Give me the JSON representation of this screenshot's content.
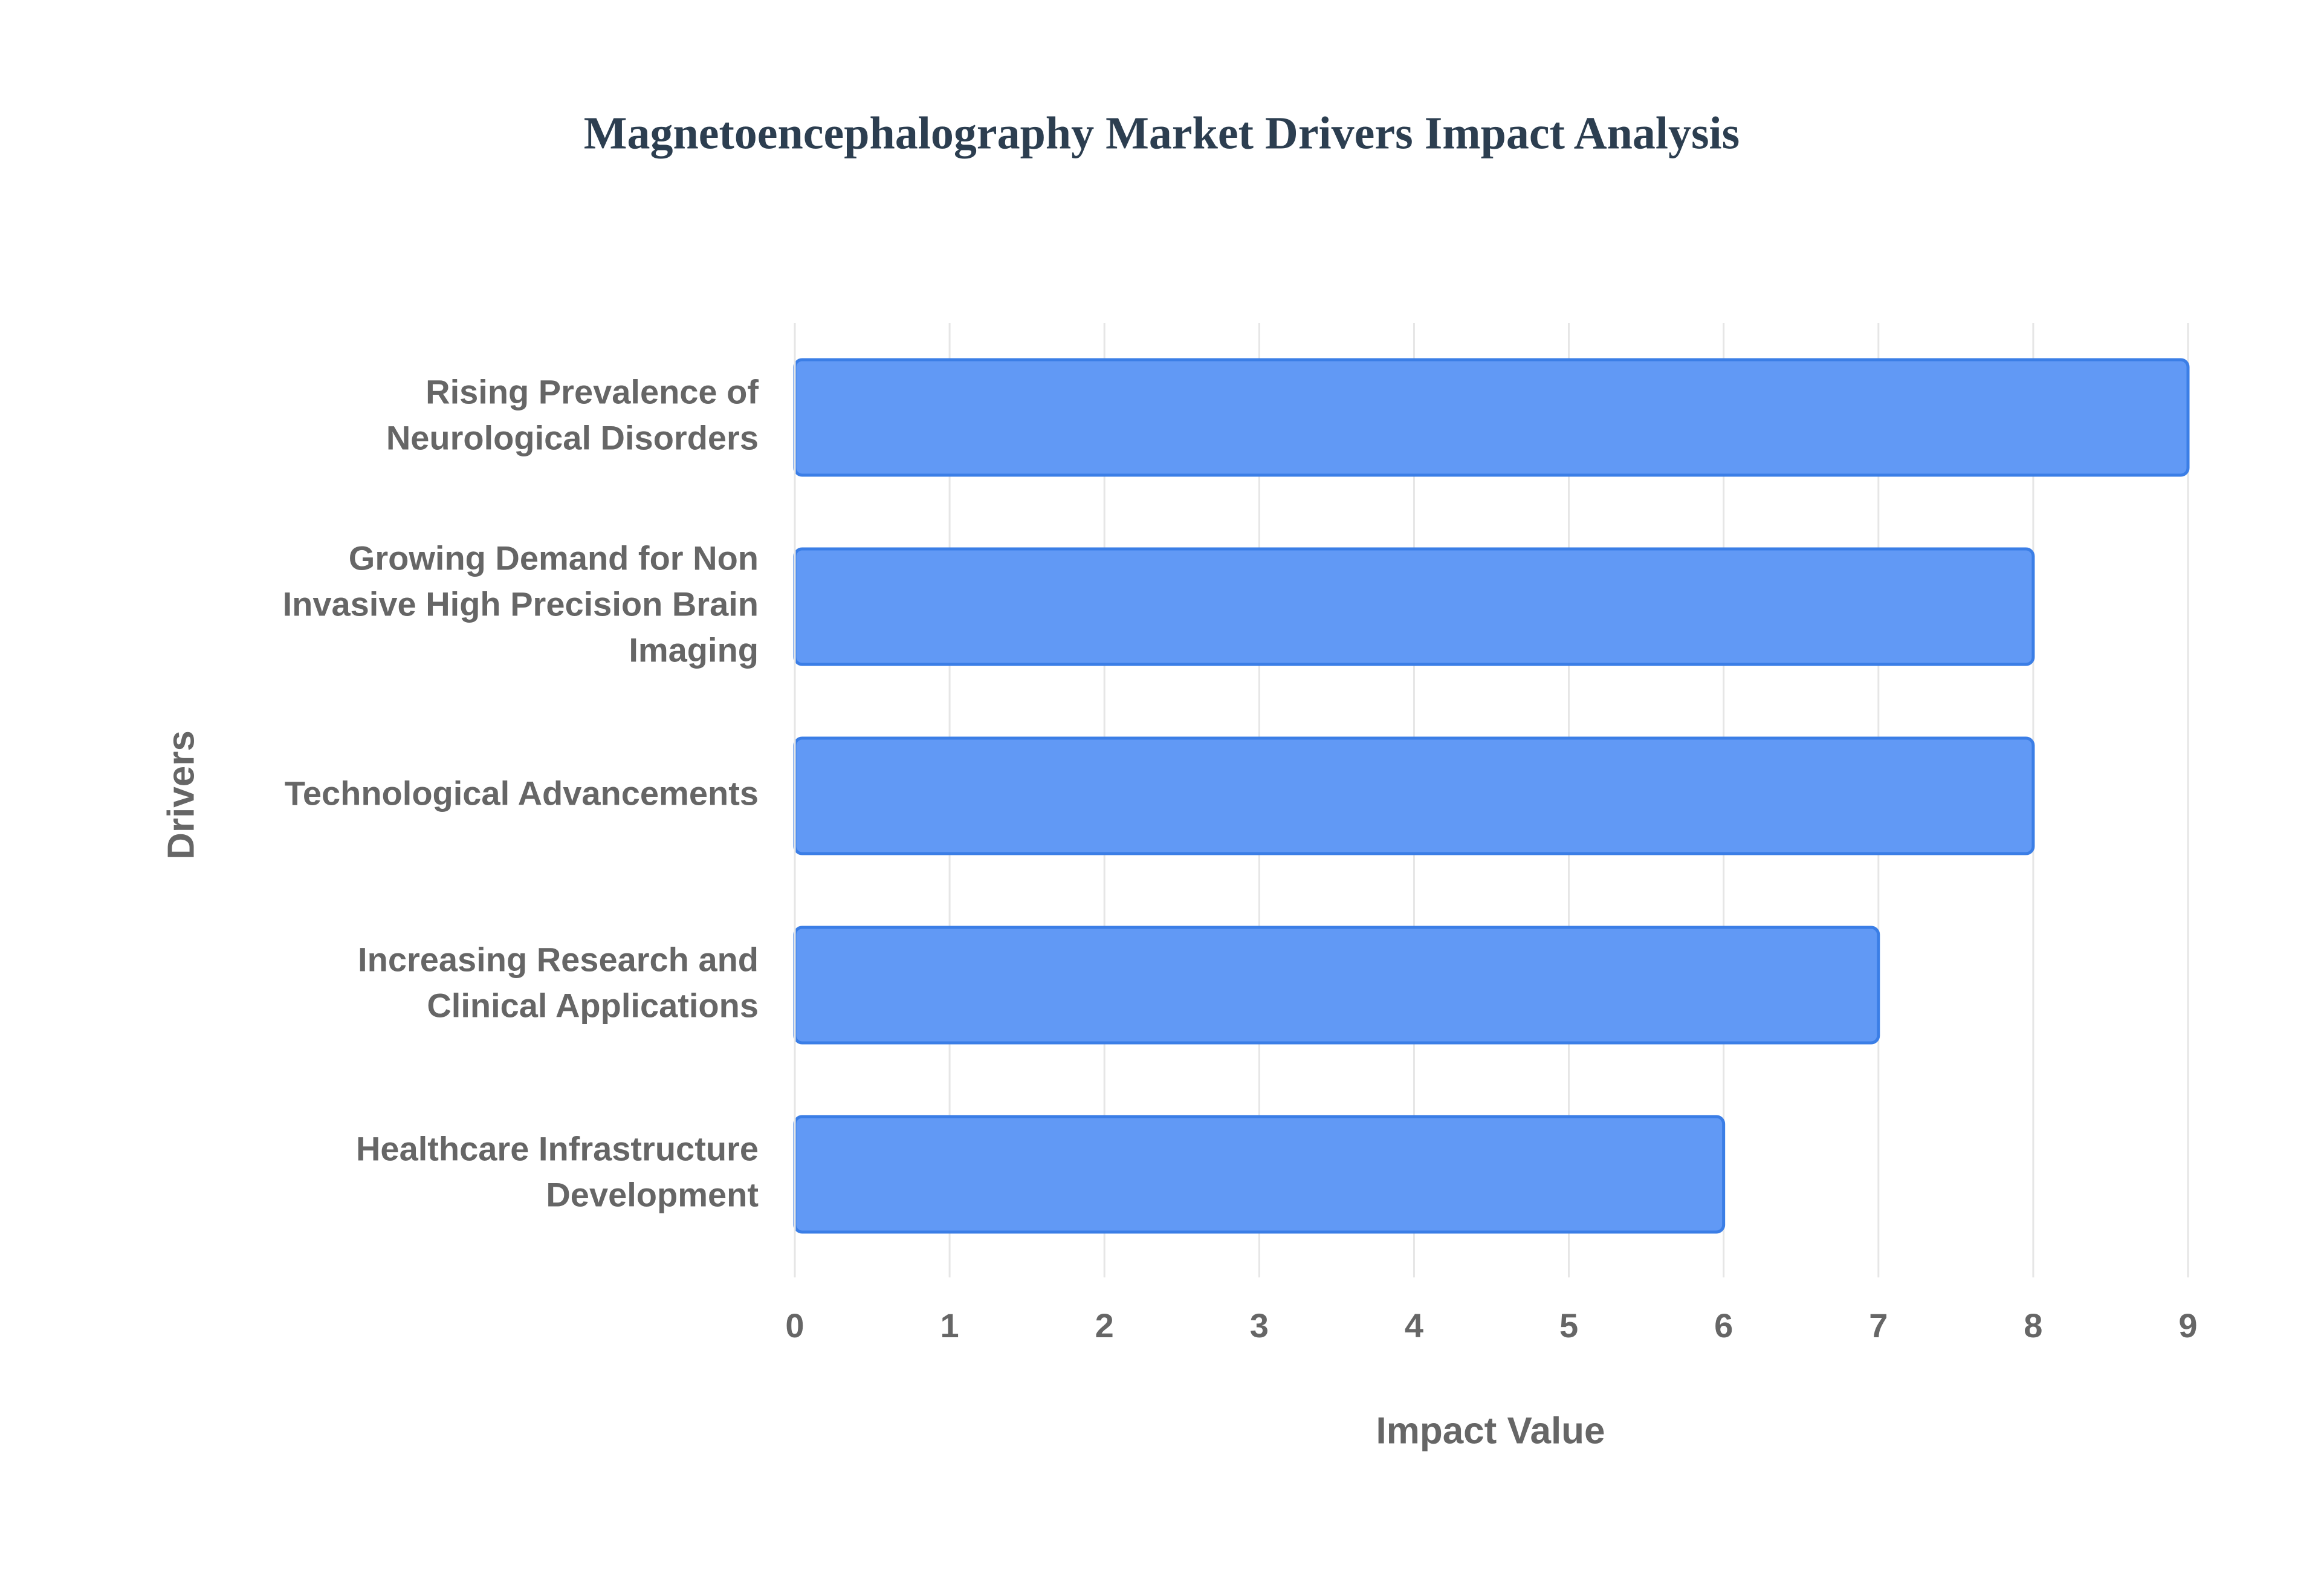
{
  "chart_data": {
    "type": "hbar",
    "title": "Magnetoencephalography Market Drivers Impact Analysis",
    "x_label": "Impact Value",
    "y_label": "Drivers",
    "categories": [
      "Rising Prevalence of Neurological Disorders",
      "Growing Demand for Non Invasive High Precision Brain Imaging",
      "Technological Advancements",
      "Increasing Research and Clinical Applications",
      "Healthcare Infrastructure Development"
    ],
    "values": [
      9,
      8,
      8,
      7,
      6
    ],
    "color": "#6199f5",
    "edge_color": "#3b7ee6",
    "xlim": [
      0,
      9
    ],
    "xticks": [
      0,
      1,
      2,
      3,
      4,
      5,
      6,
      7,
      8,
      9
    ],
    "grid": true
  }
}
